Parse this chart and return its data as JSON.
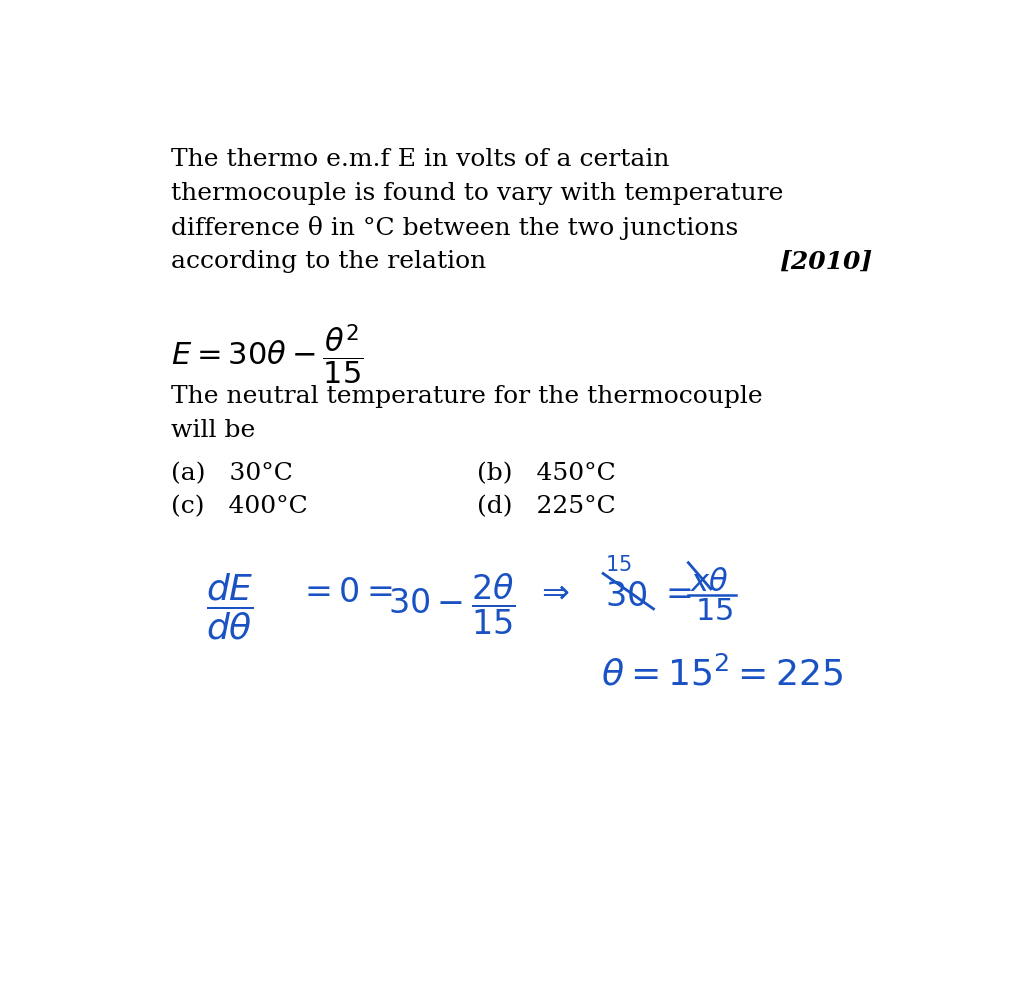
{
  "background_color": "#ffffff",
  "text_color": "#000000",
  "solution_color": "#1a52c4",
  "fig_width": 10.24,
  "fig_height": 9.93,
  "para_lines": [
    "The thermo e.m.f E in volts of a certain",
    "thermocouple is found to vary with temperature",
    "difference θ in °C between the two junctions",
    "according to the relation"
  ],
  "year_tag": "[2010]",
  "body_lines": [
    "The neutral temperature for the thermocouple",
    "will be"
  ],
  "option_a": "(a)   30°C",
  "option_b": "(b)   450°C",
  "option_c": "(c)   400°C",
  "option_d": "(d)   225°C"
}
